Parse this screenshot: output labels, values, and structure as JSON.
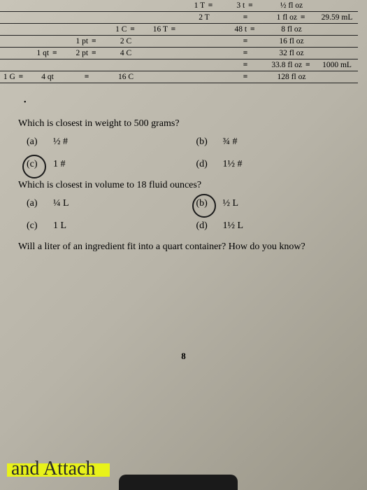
{
  "conversions": {
    "r1": {
      "c6": "1 T",
      "eq6": "=",
      "c7": "3 t",
      "eq7": "=",
      "c8": "½ fl oz"
    },
    "r2": {
      "c6": "2 T",
      "eq7": "=",
      "c8": "1 fl oz",
      "eq8": "=",
      "c9": "29.59 mL"
    },
    "r3": {
      "c4": "1 C",
      "eq4": "=",
      "c5": "16 T",
      "eq5": "=",
      "c7": "48 t",
      "eq7": "=",
      "c8": "8 fl oz"
    },
    "r4": {
      "c3": "1 pt",
      "eq3": "=",
      "c4": "2 C",
      "eq7": "=",
      "c8": "16 fl oz"
    },
    "r5": {
      "c2": "1 qt",
      "eq2": "=",
      "c3": "2 pt",
      "eq3": "=",
      "c4": "4 C",
      "eq7": "=",
      "c8": "32 fl oz"
    },
    "r6": {
      "eq7": "=",
      "c8": "33.8 fl oz",
      "eq8": "=",
      "c9": "1000 mL"
    },
    "r7": {
      "c1": "1 G",
      "eq1": "=",
      "c2": "4 qt",
      "eq3": "=",
      "c4": "16 C",
      "eq7": "=",
      "c8": "128 fl oz"
    }
  },
  "q1": {
    "text": "Which is closest in weight to 500 grams?",
    "a": {
      "label": "(a)",
      "val": "½ #"
    },
    "b": {
      "label": "(b)",
      "val": "¾ #"
    },
    "c": {
      "label": "(c)",
      "val": "1 #"
    },
    "d": {
      "label": "(d)",
      "val": "1½ #"
    }
  },
  "q2": {
    "text": "Which is closest in volume to 18 fluid ounces?",
    "a": {
      "label": "(a)",
      "val": "¼ L"
    },
    "b": {
      "label": "(b)",
      "val": "½ L"
    },
    "c": {
      "label": "(c)",
      "val": "1 L"
    },
    "d": {
      "label": "(d)",
      "val": "1½ L"
    }
  },
  "q3": {
    "text": "Will a liter of an ingredient fit into a quart container? How do you know?"
  },
  "page_number": "8",
  "handwriting": "and Attach"
}
